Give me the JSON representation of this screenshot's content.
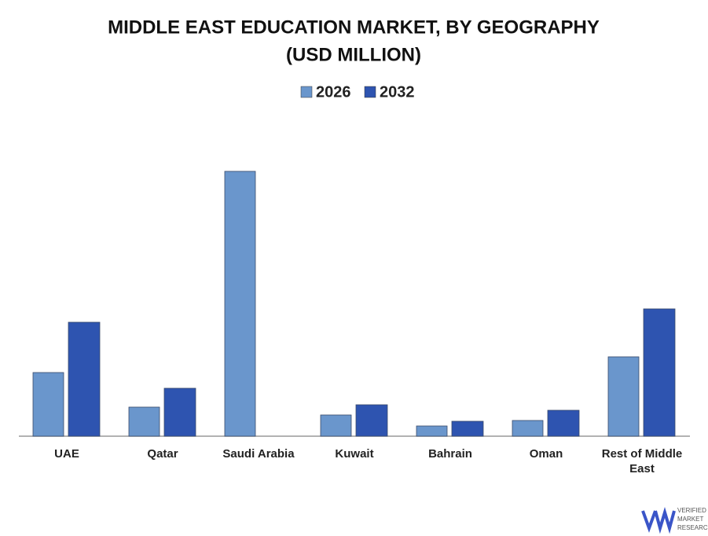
{
  "chart_data": {
    "type": "bar",
    "title": "MIDDLE EAST EDUCATION MARKET, BY GEOGRAPHY",
    "subtitle": "(USD MILLION)",
    "categories": [
      "UAE",
      "Qatar",
      "Saudi Arabia",
      "Kuwait",
      "Bahrain",
      "Oman",
      "Rest of Middle East"
    ],
    "series": [
      {
        "name": "2026",
        "color": "#6a96cc",
        "values": [
          81,
          37,
          337,
          27,
          13,
          20,
          101
        ]
      },
      {
        "name": "2032",
        "color": "#2e54b0",
        "values": [
          145,
          61,
          null,
          40,
          19,
          33,
          162
        ]
      }
    ],
    "legend": "top"
  },
  "logo": {
    "lines": [
      "VERIFIED",
      "MARKET",
      "RESEARCH"
    ]
  }
}
